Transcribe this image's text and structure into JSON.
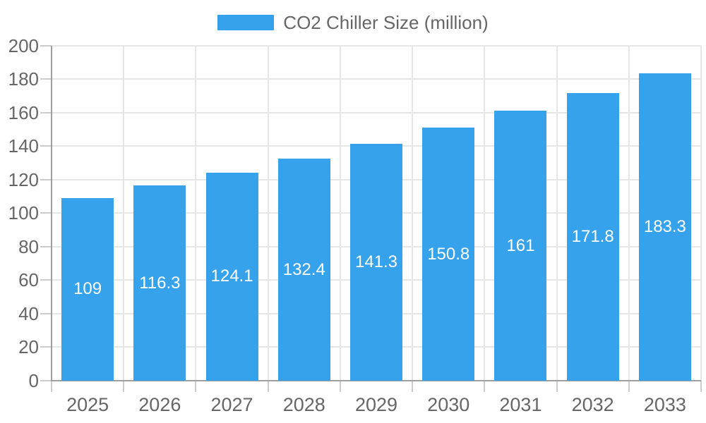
{
  "legend": {
    "label": "CO2 Chiller Size (million)"
  },
  "chart_data": {
    "type": "bar",
    "title": "CO2 Chiller Size (million)",
    "categories": [
      "2025",
      "2026",
      "2027",
      "2028",
      "2029",
      "2030",
      "2031",
      "2032",
      "2033"
    ],
    "values": [
      109,
      116.3,
      124.1,
      132.4,
      141.3,
      150.8,
      161,
      171.8,
      183.3
    ],
    "value_labels": [
      "109",
      "116.3",
      "124.1",
      "132.4",
      "141.3",
      "150.8",
      "161",
      "171.8",
      "183.3"
    ],
    "xlabel": "",
    "ylabel": "",
    "ylim": [
      0,
      200
    ],
    "ytick_step": 20,
    "yticks": [
      0,
      20,
      40,
      60,
      80,
      100,
      120,
      140,
      160,
      180,
      200
    ],
    "grid": true,
    "legend_position": "top-center",
    "colors": {
      "bar_fill": "#36a2eb",
      "bar_value_text": "#ffffff",
      "axis_line": "#9e9e9e",
      "grid_line": "#e6e6e6",
      "tick_mark": "#cccccc",
      "tick_text": "#666666",
      "legend_text": "#666666",
      "background": "#ffffff"
    }
  }
}
